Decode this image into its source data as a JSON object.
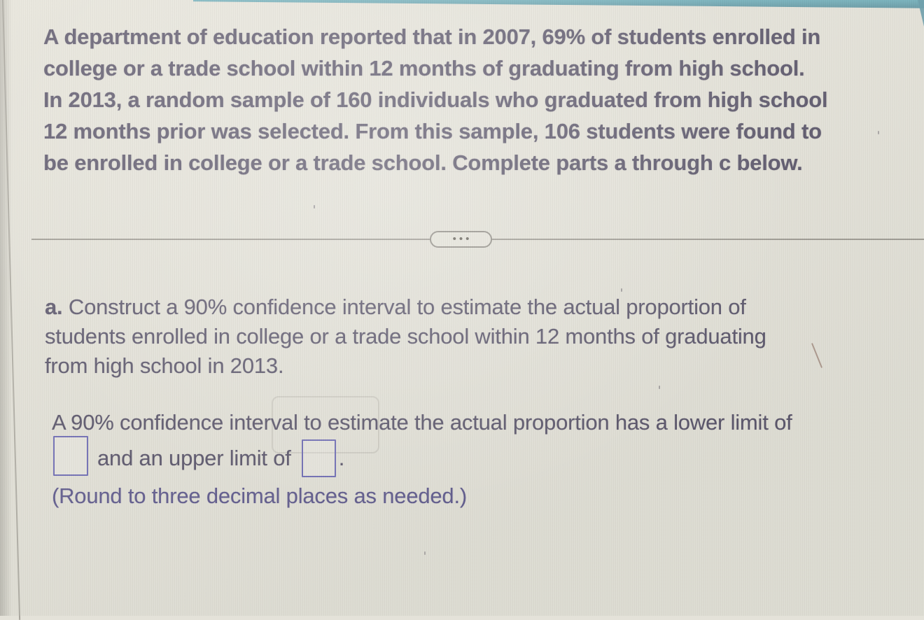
{
  "colors": {
    "background": "#e4e2d9",
    "text": "#3f3954",
    "note_text": "#4a4482",
    "input_border": "#5b58b0",
    "divider": "#827e77",
    "bezel_teal": "#4a8c9e"
  },
  "problem": {
    "lines": [
      "A department of education reported that in 2007, 69% of students enrolled in",
      "college or a trade school within 12 months of graduating from high school.",
      "In 2013, a random sample of 160 individuals who graduated from high school",
      "12 months prior was selected. From this sample, 106 students were found to",
      "be enrolled in college or a trade school. Complete parts a through c below."
    ]
  },
  "divider": {
    "ellipsis": "•••"
  },
  "part_a": {
    "label": "a.",
    "lines": [
      "Construct a 90% confidence interval to estimate the actual proportion of",
      "students enrolled in college or a trade school within 12 months of graduating",
      "from high school in 2013."
    ]
  },
  "answer": {
    "line1": "A 90% confidence interval to estimate the actual proportion has a lower limit of",
    "between_boxes": "and an upper limit of",
    "after_box": ".",
    "lower_value": "",
    "upper_value": "",
    "note": "(Round to three decimal places as needed.)"
  }
}
